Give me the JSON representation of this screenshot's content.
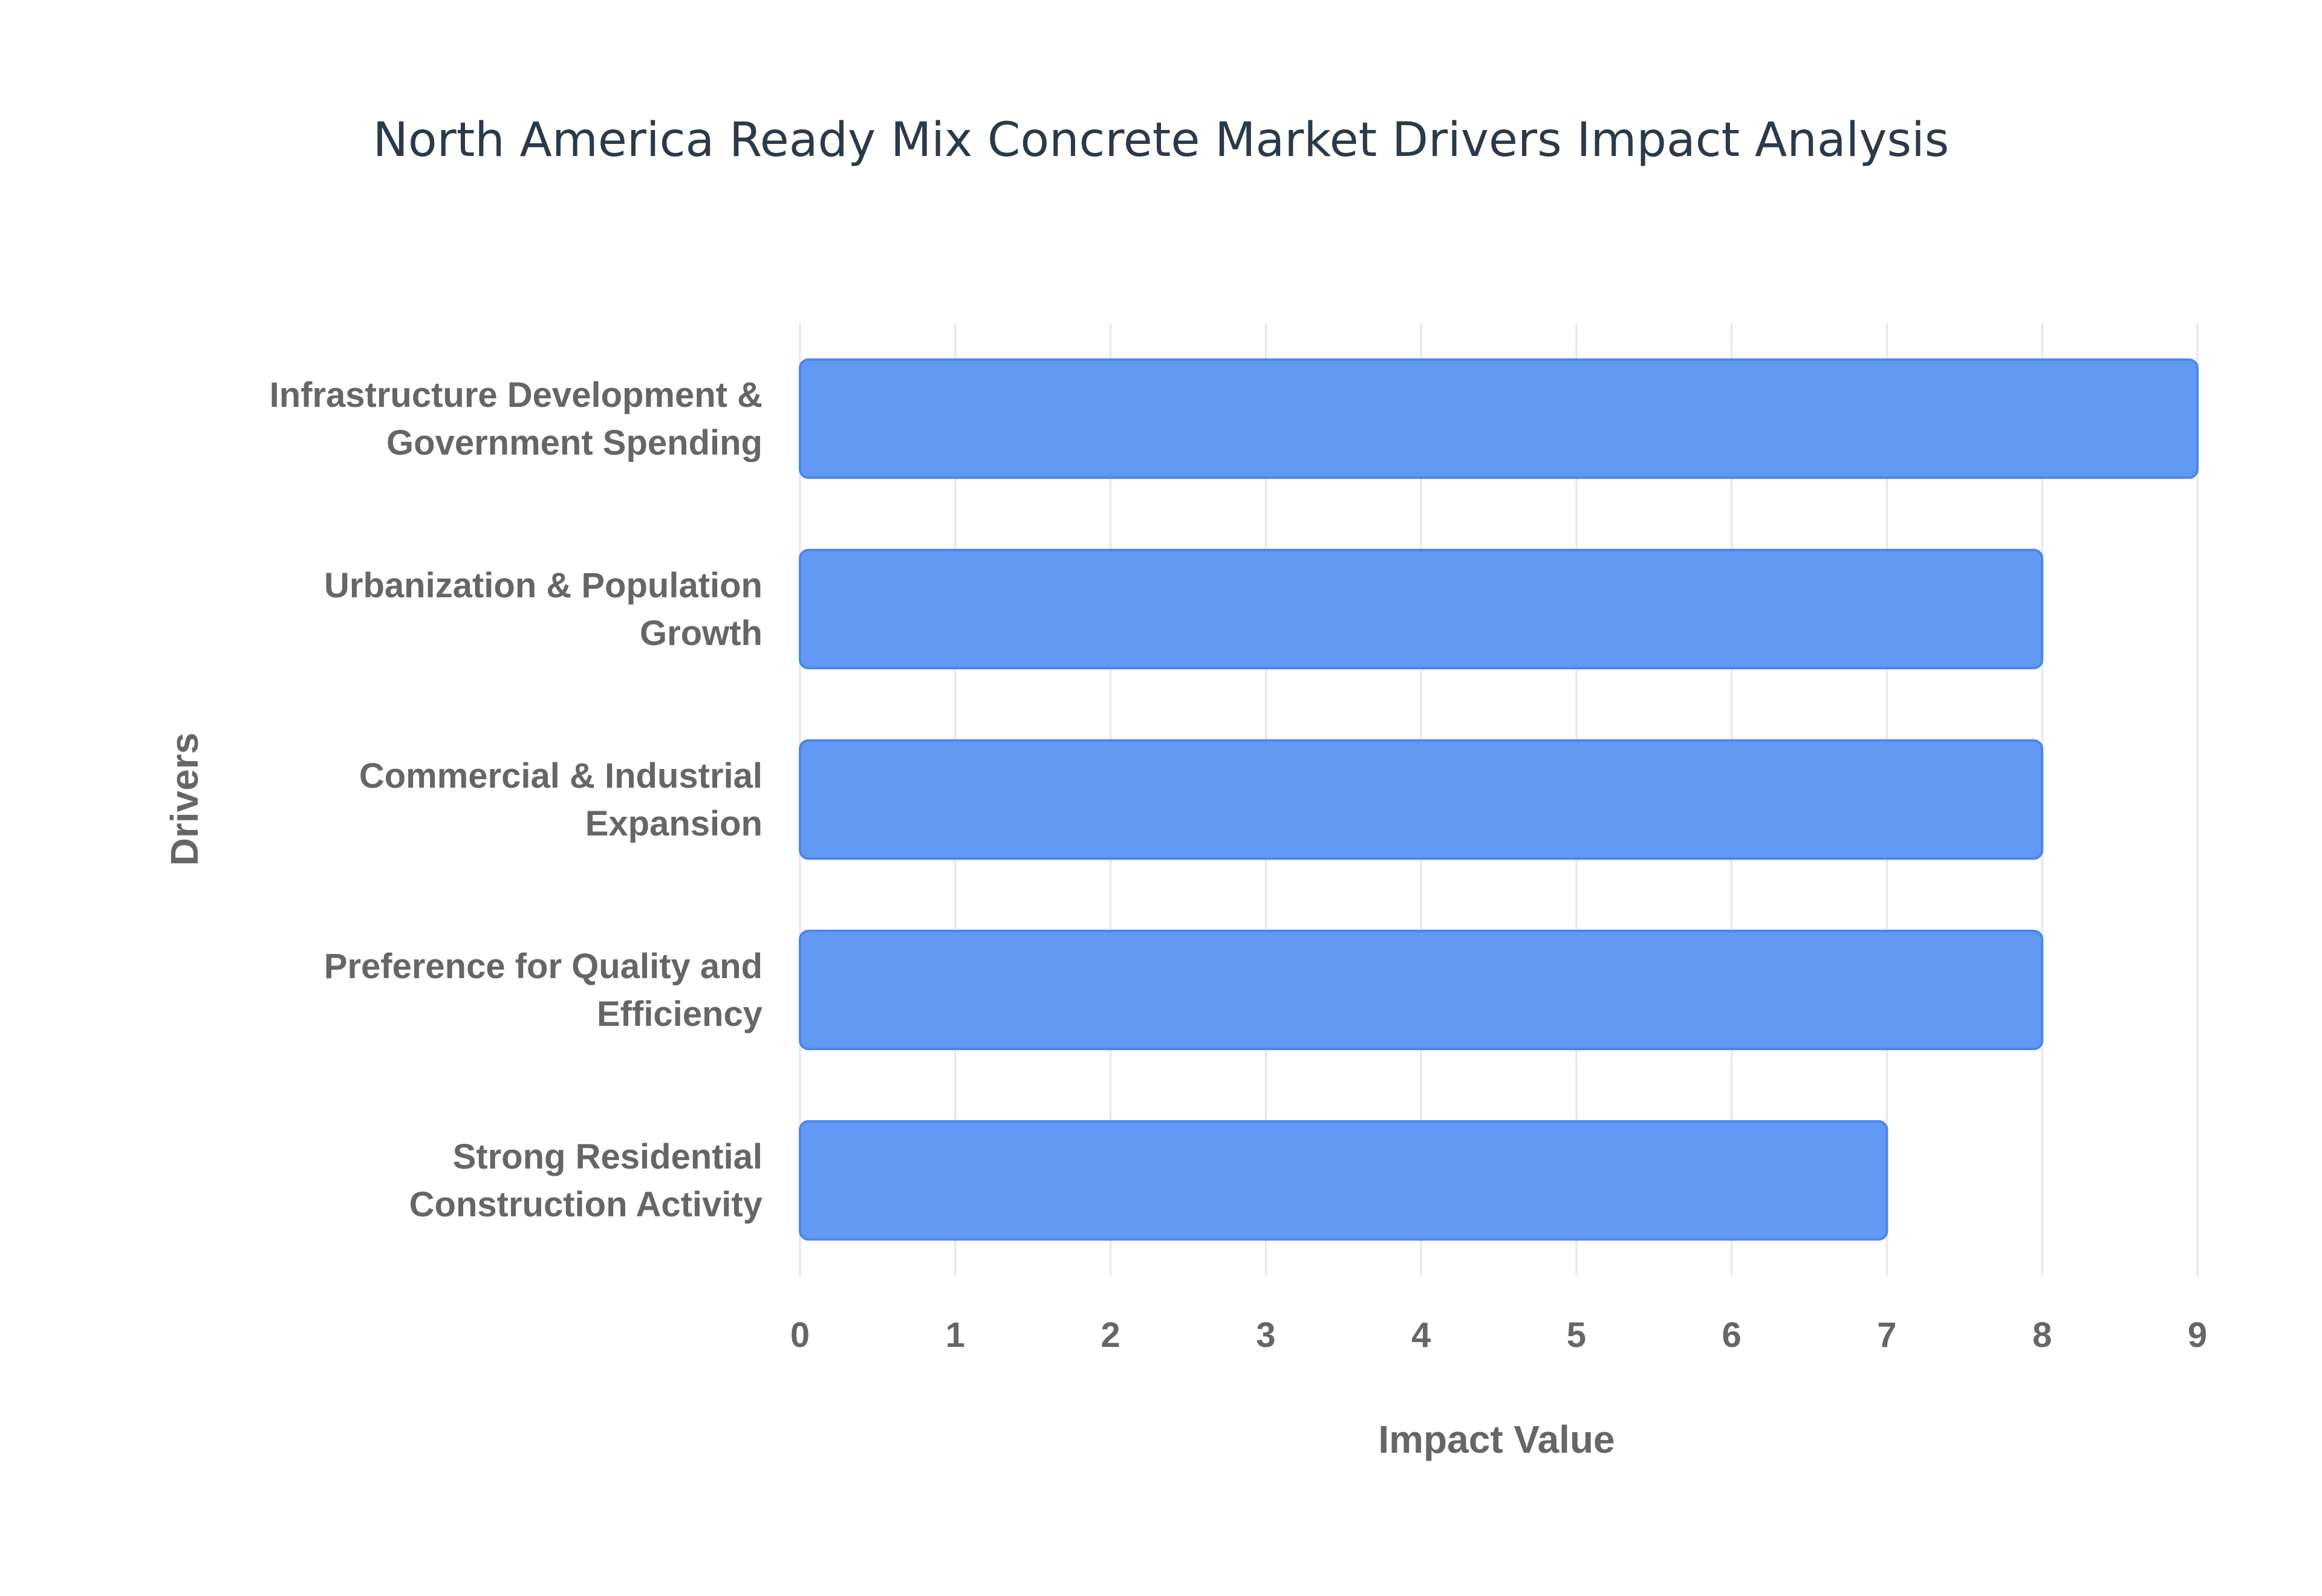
{
  "chart_data": {
    "type": "bar",
    "orientation": "horizontal",
    "title": "North America Ready Mix Concrete Market Drivers Impact Analysis",
    "xlabel": "Impact Value",
    "ylabel": "Drivers",
    "categories": [
      [
        "Infrastructure Development &",
        "Government Spending"
      ],
      [
        "Urbanization & Population",
        "Growth"
      ],
      [
        "Commercial & Industrial",
        "Expansion"
      ],
      [
        "Preference for Quality and",
        "Efficiency"
      ],
      [
        "Strong Residential",
        "Construction Activity"
      ]
    ],
    "values": [
      9,
      8,
      8,
      8,
      7
    ],
    "xlim": [
      0,
      9
    ],
    "xticks": [
      "0",
      "1",
      "2",
      "3",
      "4",
      "5",
      "6",
      "7",
      "8",
      "9"
    ],
    "grid": true,
    "legend": "none",
    "colors": {
      "bar_fill": "#6199f4",
      "bar_stroke": "#4a86ec",
      "grid": "#e6e6e6",
      "text": "#666666",
      "title": "#2b3a4a"
    }
  }
}
